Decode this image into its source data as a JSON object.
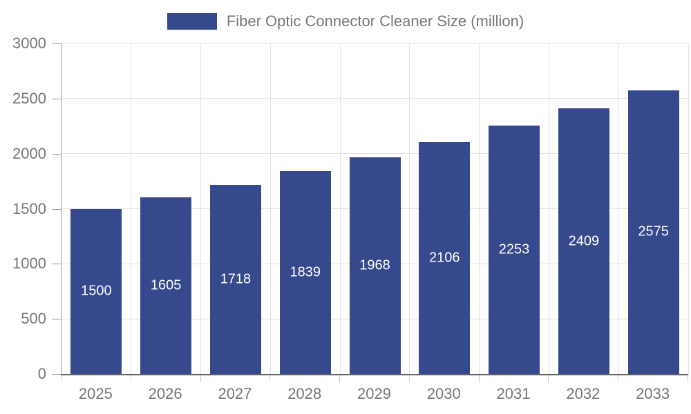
{
  "chart_data": {
    "type": "bar",
    "title": "Fiber Optic Connector Cleaner Size (million)",
    "legend": {
      "label": "Fiber Optic Connector Cleaner Size (million)",
      "position": "top-center"
    },
    "categories": [
      "2025",
      "2026",
      "2027",
      "2028",
      "2029",
      "2030",
      "2031",
      "2032",
      "2033"
    ],
    "values": [
      1500,
      1605,
      1718,
      1839,
      1968,
      2106,
      2253,
      2409,
      2575
    ],
    "xlabel": "",
    "ylabel": "",
    "ylim": [
      0,
      3000
    ],
    "yticks": [
      0,
      500,
      1000,
      1500,
      2000,
      2500,
      3000
    ],
    "grid": true,
    "bar_label_position": "inside-middle",
    "colors": {
      "bar": "#36498C",
      "bar_label": "#FFFFFF",
      "axis_text": "#767676",
      "grid_line": "#E2E2E2",
      "axis_line": "#999999",
      "baseline": "#666666",
      "background": "#FFFFFF"
    }
  }
}
